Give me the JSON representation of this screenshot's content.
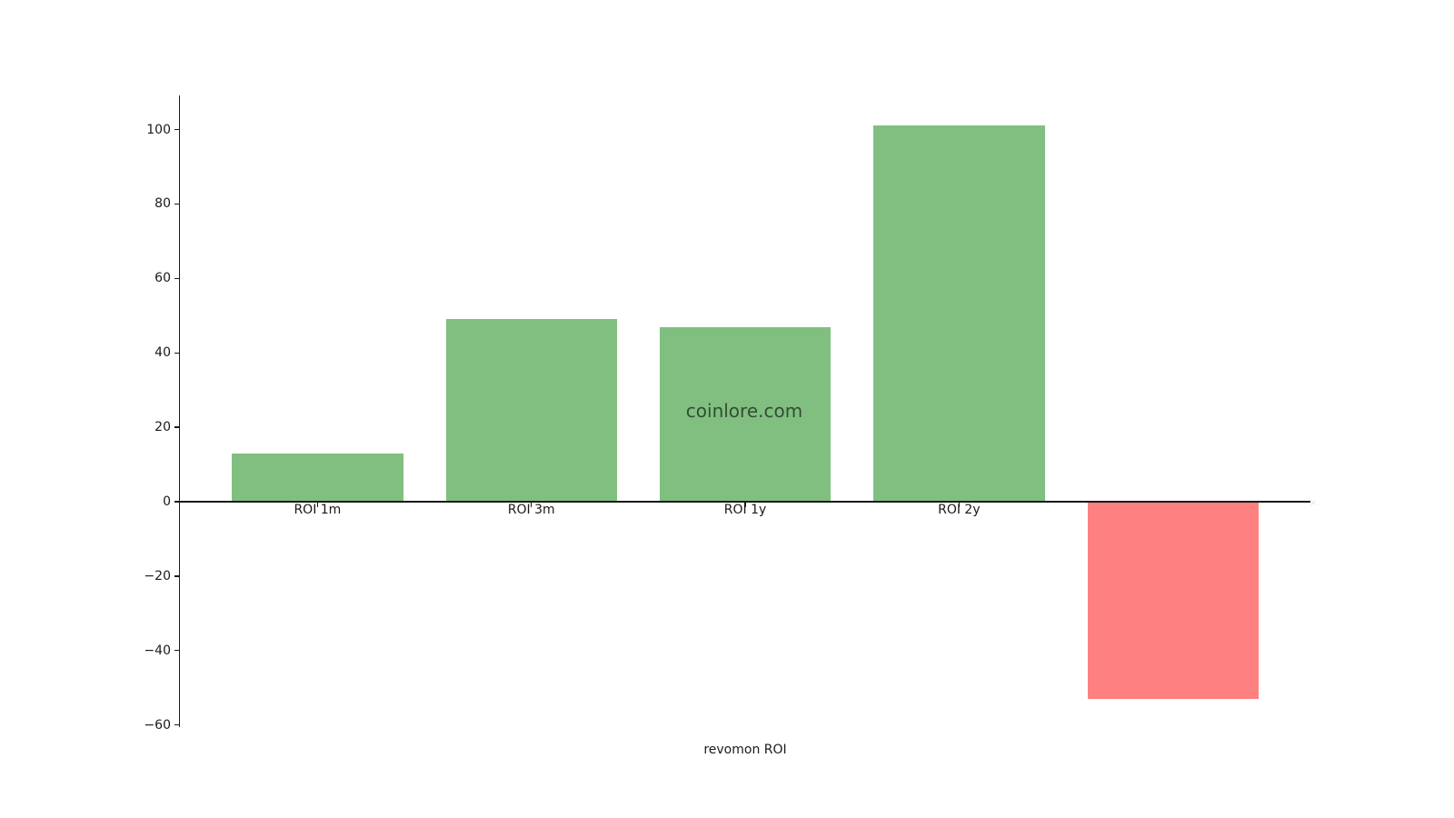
{
  "page": {
    "background": "#ffffff"
  },
  "chart_data": {
    "type": "bar",
    "title": "",
    "xlabel": "revomon ROI",
    "ylabel": "",
    "categories": [
      "ROI 1m",
      "ROI 3m",
      "ROI 1y",
      "ROI 2y",
      ""
    ],
    "values": [
      13,
      49,
      47,
      101,
      -53
    ],
    "series": [
      {
        "name": "revomon ROI %",
        "values": [
          13,
          49,
          47,
          101,
          -53
        ]
      }
    ],
    "bar_colors": [
      "#80bf80",
      "#80bf80",
      "#80bf80",
      "#80bf80",
      "#ff8080"
    ],
    "positive_color": "#80bf80",
    "negative_color": "#ff8080",
    "ylim": [
      -61,
      109
    ],
    "yticks": [
      100,
      80,
      60,
      40,
      20,
      0,
      -20,
      -40,
      -60
    ],
    "ytick_labels": [
      "100",
      "80",
      "60",
      "40",
      "20",
      "0",
      "−20",
      "−40",
      "−60"
    ],
    "grid": false,
    "legend": null,
    "watermark": "coinlore.com",
    "axis_color": "#1a1a1a",
    "text_color": "#1a1a1a",
    "cursor_artifact_glyph": "×"
  }
}
